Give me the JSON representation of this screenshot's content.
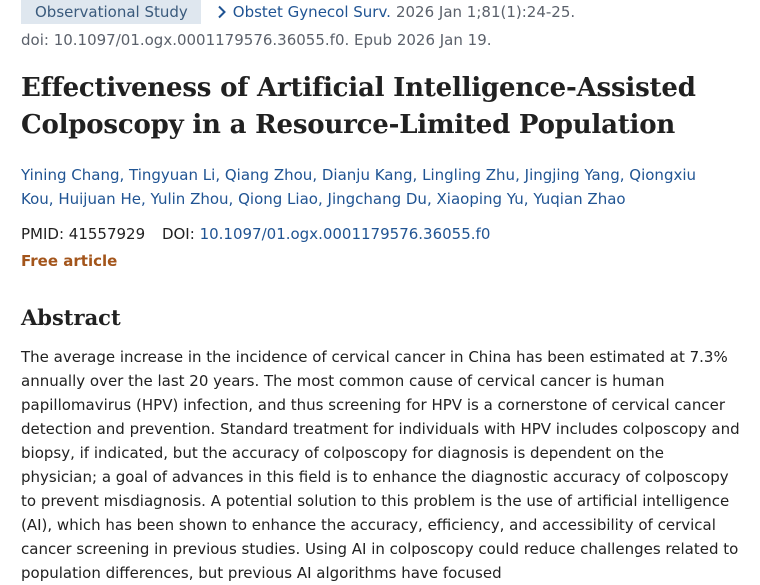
{
  "header": {
    "badge": "Observational Study",
    "journal": "Obstet Gynecol Surv.",
    "citation": "2026 Jan 1;81(1):24-25.",
    "doi_line": "doi: 10.1097/01.ogx.0001179576.36055.f0. Epub 2026 Jan 19."
  },
  "article": {
    "title": "Effectiveness of Artificial Intelligence-Assisted Colposcopy in a Resource-Limited Population",
    "authors": [
      "Yining Chang",
      "Tingyuan Li",
      "Qiang Zhou",
      "Dianju Kang",
      "Lingling Zhu",
      "Jingjing Yang",
      "Qiongxiu Kou",
      "Huijuan He",
      "Yulin Zhou",
      "Qiong Liao",
      "Jingchang Du",
      "Xiaoping Yu",
      "Yuqian Zhao"
    ],
    "author_separator": ",",
    "pmid_label": "PMID:",
    "pmid": "41557929",
    "doi_label": "DOI:",
    "doi": "10.1097/01.ogx.0001179576.36055.f0",
    "free_label": "Free article"
  },
  "abstract": {
    "heading": "Abstract",
    "text": "The average increase in the incidence of cervical cancer in China has been estimated at 7.3% annually over the last 20 years. The most common cause of cervical cancer is human papillomavirus (HPV) infection, and thus screening for HPV is a cornerstone of cervical cancer detection and prevention. Standard treatment for individuals with HPV includes colposcopy and biopsy, if indicated, but the accuracy of colposcopy for diagnosis is dependent on the physician; a goal of advances in this field is to enhance the diagnostic accuracy of colposcopy to prevent misdiagnosis. A potential solution to this problem is the use of artificial intelligence (AI), which has been shown to enhance the accuracy, efficiency, and accessibility of cervical cancer screening in previous studies. Using AI in colposcopy could reduce challenges related to population differences, but previous AI algorithms have focused"
  },
  "colors": {
    "link": "#205493",
    "badge_bg": "#dfe7ef",
    "free": "#a3551b"
  }
}
